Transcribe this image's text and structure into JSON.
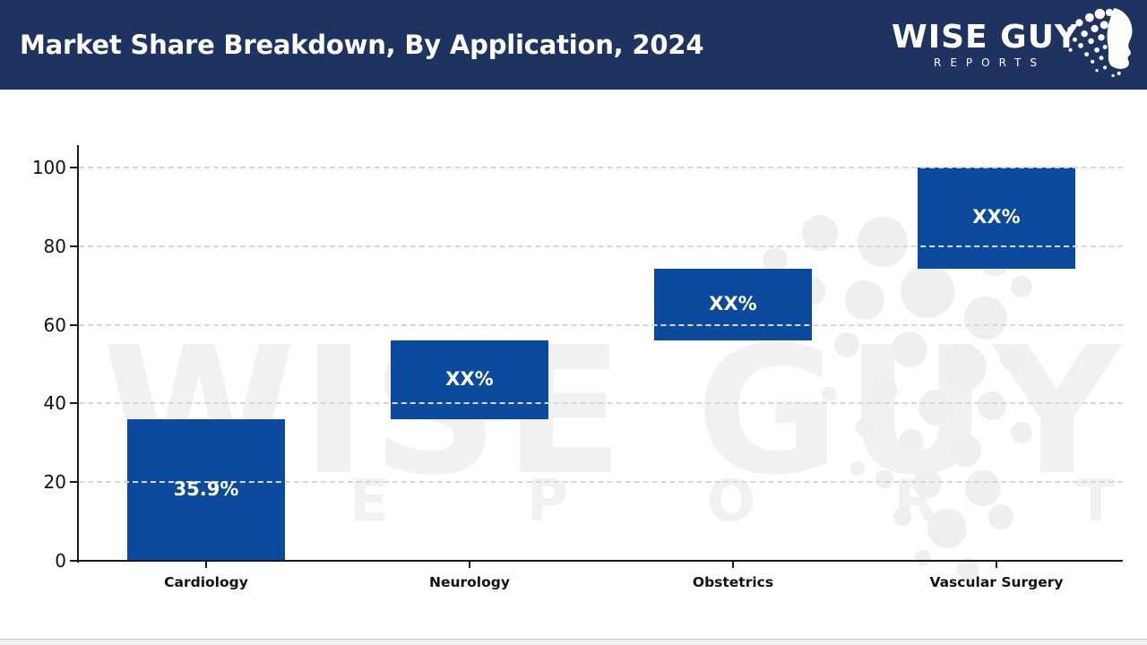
{
  "header": {
    "title": "Market Share Breakdown, By Application, 2024",
    "logo": {
      "line1": "WISE GUY",
      "line2": "REPORTS"
    }
  },
  "icons": {
    "logo_head": "dotted-head-profile",
    "watermark_head": "dotted-head-profile"
  },
  "colors": {
    "header_bg": "#1e3360",
    "bar": "#0c4a9e",
    "bar_label": "#ffffff",
    "grid": "#d8d8d8",
    "axis": "#1a1a1a",
    "watermark": "#f1f1f1"
  },
  "watermark": {
    "line1": "WISE GUY",
    "line2": "R E P O R T S"
  },
  "chart_data": {
    "type": "bar",
    "subtype": "waterfall",
    "title": "Market Share Breakdown, By Application, 2024",
    "categories": [
      "Cardiology",
      "Neurology",
      "Obstetrics",
      "Vascular Surgery"
    ],
    "series": [
      {
        "name": "Market Share (%)",
        "segments": [
          {
            "start": 0,
            "end": 35.9,
            "label": "35.9%"
          },
          {
            "start": 35.9,
            "end": 56.0,
            "label": "XX%"
          },
          {
            "start": 56.0,
            "end": 74.3,
            "label": "XX%"
          },
          {
            "start": 74.3,
            "end": 100,
            "label": "XX%"
          }
        ]
      }
    ],
    "xlabel": "",
    "ylabel": "",
    "ylim": [
      0,
      105
    ],
    "yticks": [
      0,
      20,
      40,
      60,
      80,
      100
    ],
    "grid": "horizontal dashed",
    "legend": "none",
    "value_labels_masked": true
  }
}
